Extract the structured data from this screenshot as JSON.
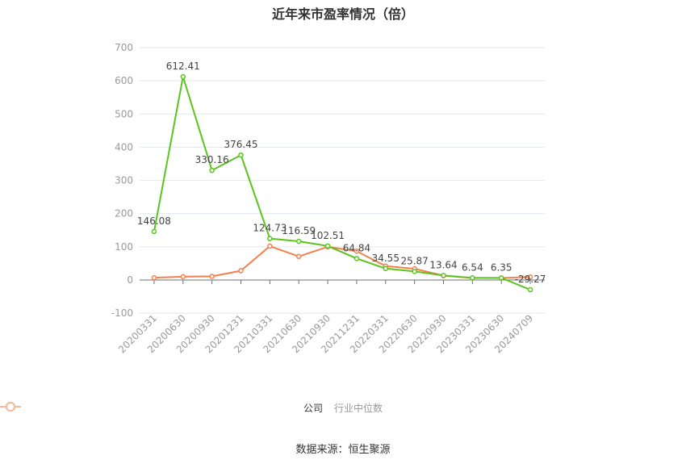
{
  "title": "近年来市盈率情况（倍）",
  "source": "数据来源：恒生聚源",
  "legend": [
    {
      "label": "公司",
      "color": "#5bc41f"
    },
    {
      "label": "行业中位数",
      "color": "#f8b99a"
    }
  ],
  "chart_data": {
    "type": "line",
    "title": "近年来市盈率情况（倍）",
    "xlabel": "",
    "ylabel": "",
    "ylim": [
      -100,
      700
    ],
    "yticks": [
      -100,
      0,
      100,
      200,
      300,
      400,
      500,
      600,
      700
    ],
    "grid": true,
    "legend_position": "bottom",
    "categories": [
      "20200331",
      "20200630",
      "20200930",
      "20201231",
      "20210331",
      "20210630",
      "20210930",
      "20211231",
      "20220331",
      "20220630",
      "20220930",
      "20230331",
      "20230630",
      "20240709"
    ],
    "series": [
      {
        "name": "公司",
        "color": "#5bc41f",
        "values": [
          146.08,
          612.41,
          330.16,
          376.45,
          124.73,
          116.59,
          102.51,
          64.84,
          34.55,
          25.87,
          13.64,
          6.54,
          6.35,
          -29.27
        ],
        "labels_shown": true
      },
      {
        "name": "行业中位数",
        "color": "#f5804c",
        "values": [
          7,
          10,
          11,
          28,
          102,
          71,
          100,
          87,
          42,
          34,
          13,
          6,
          6,
          9
        ],
        "labels_shown": false
      }
    ]
  }
}
